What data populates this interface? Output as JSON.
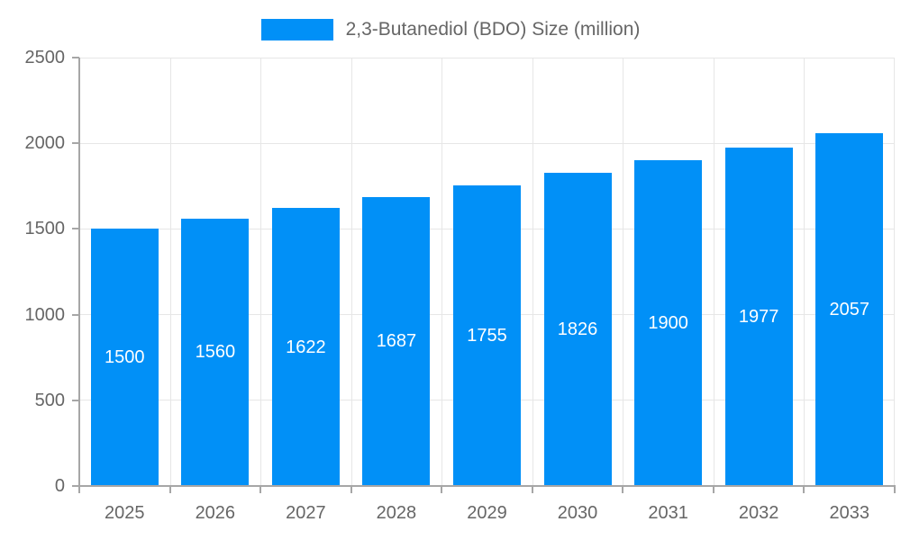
{
  "chart_data": {
    "type": "bar",
    "title": "",
    "legend_label": "2,3-Butanediol (BDO) Size (million)",
    "legend_position": "top",
    "categories": [
      "2025",
      "2026",
      "2027",
      "2028",
      "2029",
      "2030",
      "2031",
      "2032",
      "2033"
    ],
    "values": [
      1500,
      1560,
      1622,
      1687,
      1755,
      1826,
      1900,
      1977,
      2057
    ],
    "xlabel": "",
    "ylabel": "",
    "ylim": [
      0,
      2500
    ],
    "yticks": [
      0,
      500,
      1000,
      1500,
      2000,
      2500
    ],
    "grid": true,
    "bar_labels_visible": true,
    "colors": {
      "bar": "#0190f7",
      "bar_label_text": "#ffffff",
      "axis_text": "#666666",
      "grid_line": "#e6e6e6",
      "axis_line": "#a6a6a6",
      "background": "#ffffff"
    }
  }
}
